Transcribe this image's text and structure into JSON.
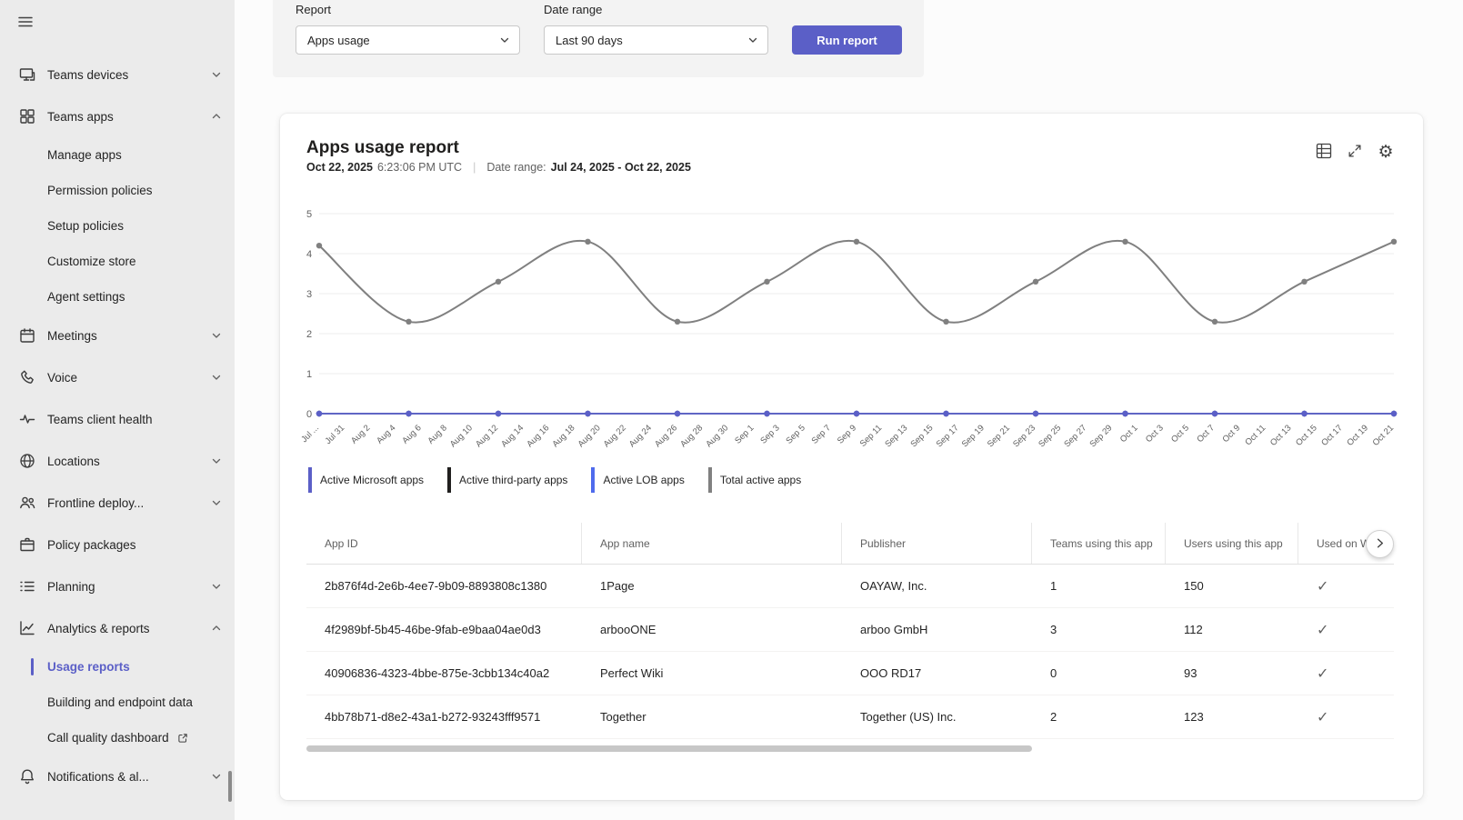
{
  "colors": {
    "accent": "#5b5fc7"
  },
  "sidebar": {
    "items": [
      {
        "label": "Teams devices"
      },
      {
        "label": "Teams apps"
      },
      {
        "label": "Manage apps"
      },
      {
        "label": "Permission policies"
      },
      {
        "label": "Setup policies"
      },
      {
        "label": "Customize store"
      },
      {
        "label": "Agent settings"
      },
      {
        "label": "Meetings"
      },
      {
        "label": "Voice"
      },
      {
        "label": "Teams client health"
      },
      {
        "label": "Locations"
      },
      {
        "label": "Frontline deploy..."
      },
      {
        "label": "Policy packages"
      },
      {
        "label": "Planning"
      },
      {
        "label": "Analytics & reports"
      },
      {
        "label": "Usage reports"
      },
      {
        "label": "Building and endpoint data"
      },
      {
        "label": "Call quality dashboard"
      },
      {
        "label": "Notifications & al..."
      }
    ]
  },
  "filters": {
    "report_label": "Report",
    "report_value": "Apps usage",
    "date_range_label": "Date range",
    "date_range_value": "Last 90 days",
    "run_button_label": "Run report"
  },
  "report": {
    "title": "Apps usage report",
    "generated_date": "Oct 22, 2025",
    "generated_time": "6:23:06 PM UTC",
    "separator": "|",
    "date_range_label": "Date range:",
    "date_range_value": "Jul 24, 2025 - Oct 22, 2025"
  },
  "chart_data": {
    "type": "line",
    "ylim": [
      0,
      5
    ],
    "y_ticks": [
      0,
      1,
      2,
      3,
      4,
      5
    ],
    "grid": true,
    "legend_position": "bottom",
    "x_tick_labels": [
      "Jul ...",
      "Jul 31",
      "Aug 2",
      "Aug 4",
      "Aug 6",
      "Aug 8",
      "Aug 10",
      "Aug 12",
      "Aug 14",
      "Aug 16",
      "Aug 18",
      "Aug 20",
      "Aug 22",
      "Aug 24",
      "Aug 26",
      "Aug 28",
      "Aug 30",
      "Sep 1",
      "Sep 3",
      "Sep 5",
      "Sep 7",
      "Sep 9",
      "Sep 11",
      "Sep 13",
      "Sep 15",
      "Sep 17",
      "Sep 19",
      "Sep 21",
      "Sep 23",
      "Sep 25",
      "Sep 27",
      "Sep 29",
      "Oct 1",
      "Oct 3",
      "Oct 5",
      "Oct 7",
      "Oct 9",
      "Oct 11",
      "Oct 13",
      "Oct 15",
      "Oct 17",
      "Oct 19",
      "Oct 21"
    ],
    "point_interval_days": 7.5,
    "series": [
      {
        "name": "Active Microsoft apps",
        "color": "#5b5fc7",
        "values": [
          0,
          0,
          0,
          0,
          0,
          0,
          0,
          0,
          0,
          0,
          0,
          0,
          0
        ]
      },
      {
        "name": "Active third-party apps",
        "color": "#201f1e",
        "values": [
          0,
          0,
          0,
          0,
          0,
          0,
          0,
          0,
          0,
          0,
          0,
          0,
          0
        ]
      },
      {
        "name": "Active LOB apps",
        "color": "#4f6bed",
        "values": [
          0,
          0,
          0,
          0,
          0,
          0,
          0,
          0,
          0,
          0,
          0,
          0,
          0
        ]
      },
      {
        "name": "Total active apps",
        "color": "#808080",
        "values": [
          4.2,
          2.3,
          3.3,
          4.3,
          2.3,
          3.3,
          4.3,
          2.3,
          3.3,
          4.3,
          2.3,
          3.3,
          4.3
        ]
      }
    ]
  },
  "table": {
    "columns": [
      "App ID",
      "App name",
      "Publisher",
      "Teams using this app",
      "Users using this app",
      "Used on W..."
    ],
    "rows": [
      [
        "2b876f4d-2e6b-4ee7-9b09-8893808c1380",
        "1Page",
        "OAYAW, Inc.",
        "1",
        "150",
        "✓"
      ],
      [
        "4f2989bf-5b45-46be-9fab-e9baa04ae0d3",
        "arbooONE",
        "arboo GmbH",
        "3",
        "112",
        "✓"
      ],
      [
        "40906836-4323-4bbe-875e-3cbb134c40a2",
        "Perfect Wiki",
        "OOO RD17",
        "0",
        "93",
        "✓"
      ],
      [
        "4bb78b71-d8e2-43a1-b272-93243fff9571",
        "Together",
        "Together (US) Inc.",
        "2",
        "123",
        "✓"
      ]
    ]
  }
}
